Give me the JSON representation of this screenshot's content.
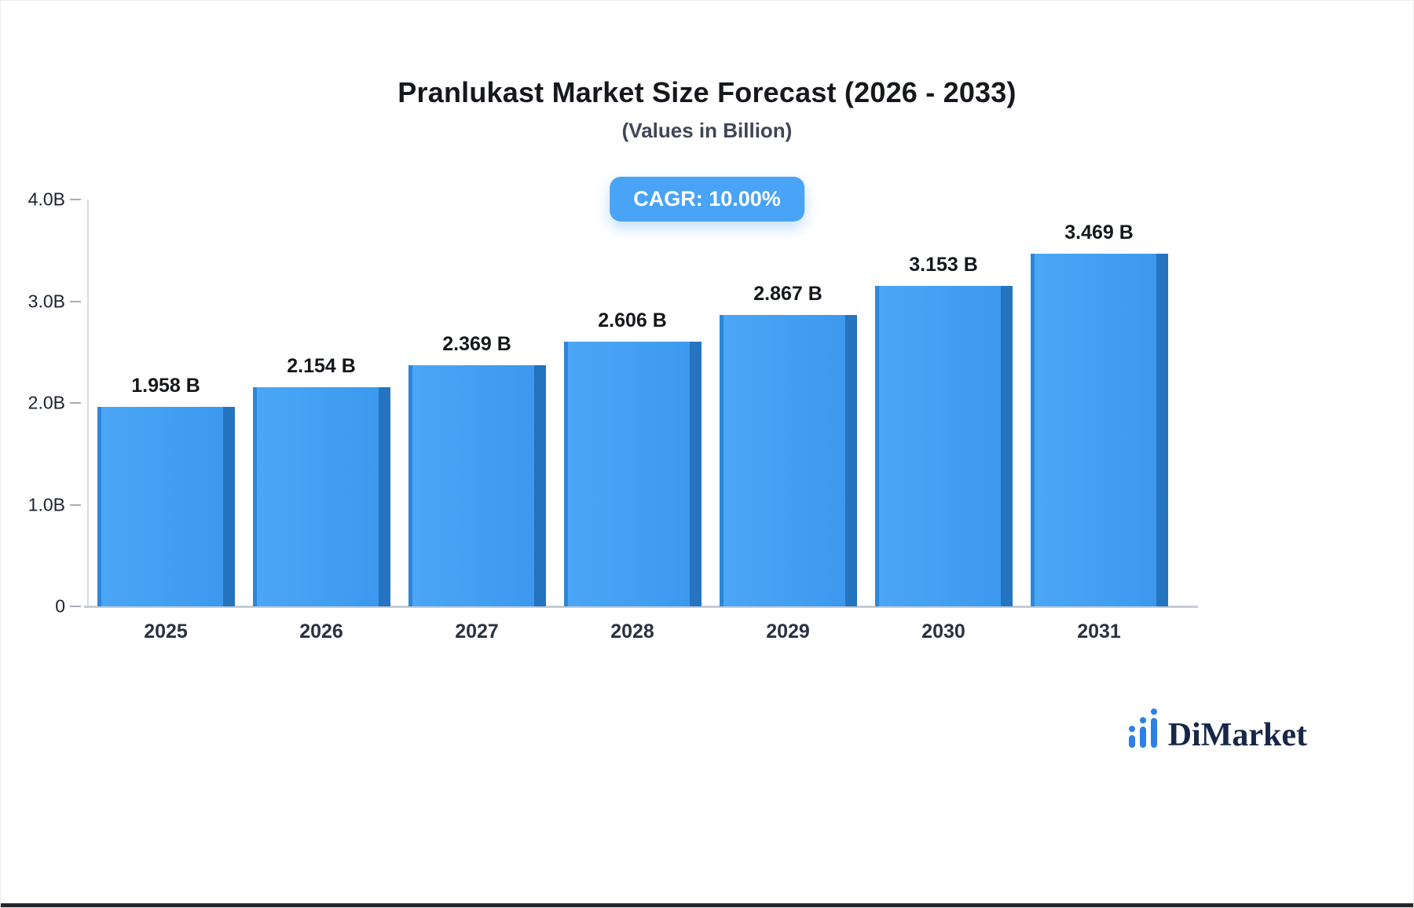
{
  "chart_data": {
    "type": "bar",
    "title": "Pranlukast Market Size Forecast (2026 - 2033)",
    "subtitle": "(Values in Billion)",
    "cagr_label": "CAGR: 10.00%",
    "categories": [
      "2025",
      "2026",
      "2027",
      "2028",
      "2029",
      "2030",
      "2031"
    ],
    "values": [
      1.958,
      2.154,
      2.369,
      2.606,
      2.867,
      3.153,
      3.469
    ],
    "value_labels": [
      "1.958 B",
      "2.154 B",
      "2.369 B",
      "2.606 B",
      "2.867 B",
      "3.153 B",
      "3.469 B"
    ],
    "xlabel": "",
    "ylabel": "",
    "ylim": [
      0,
      4
    ],
    "y_ticks": [
      {
        "value": 0,
        "label": "0"
      },
      {
        "value": 1,
        "label": "1.0B"
      },
      {
        "value": 2,
        "label": "2.0B"
      },
      {
        "value": 3,
        "label": "3.0B"
      },
      {
        "value": 4,
        "label": "4.0B"
      }
    ],
    "grid": false,
    "legend": false,
    "bar_color": "#3f9df0",
    "bar_edge_dark": "#2574c0",
    "bar_edge_light": "#2f86d8",
    "badge_color": "#49a3f7"
  },
  "branding": {
    "logo_text": "DiMarket",
    "logo_icon": "dimarket-bars-icon",
    "accent_color": "#2e7fe8",
    "text_color": "#182747"
  }
}
